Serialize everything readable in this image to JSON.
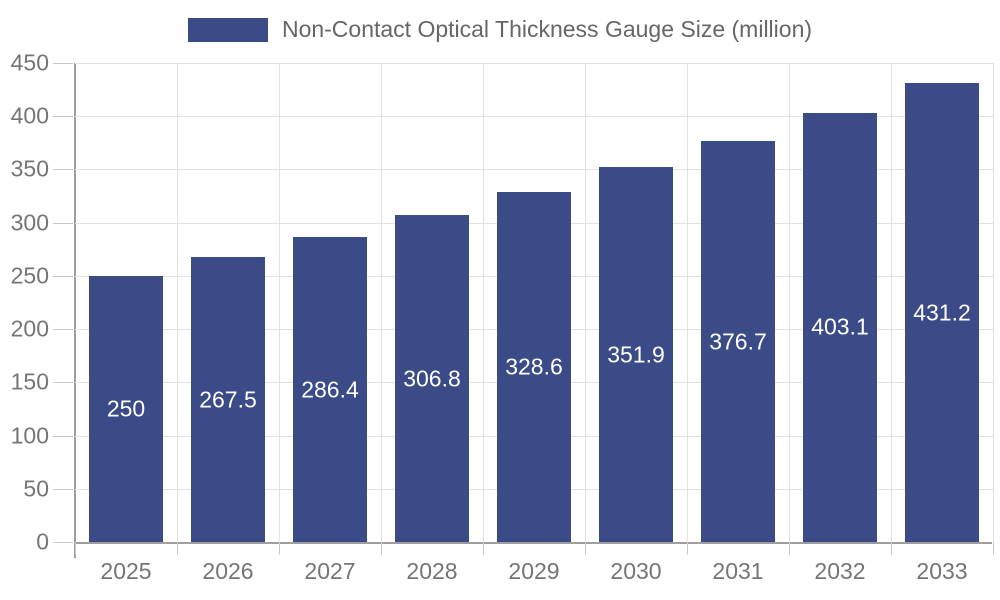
{
  "legend": {
    "label": "Non-Contact Optical Thickness Gauge Size (million)"
  },
  "chart_data": {
    "type": "bar",
    "title": "Non-Contact Optical Thickness Gauge Size (million)",
    "categories": [
      "2025",
      "2026",
      "2027",
      "2028",
      "2029",
      "2030",
      "2031",
      "2032",
      "2033"
    ],
    "values": [
      250,
      267.5,
      286.4,
      306.8,
      328.6,
      351.9,
      376.7,
      403.1,
      431.2
    ],
    "value_labels": [
      "250",
      "267.5",
      "286.4",
      "306.8",
      "328.6",
      "351.9",
      "376.7",
      "403.1",
      "431.2"
    ],
    "xlabel": "",
    "ylabel": "",
    "ylim": [
      0,
      450
    ],
    "yticks": [
      0,
      50,
      100,
      150,
      200,
      250,
      300,
      350,
      400,
      450
    ],
    "grid": true,
    "legend_position": "top-center",
    "colors": {
      "bar_fill": "#3a4b87",
      "bar_value_label": "#ffffff",
      "axis_line": "#9e9e9e",
      "gridline": "#e2e2e2",
      "tick_mark": "#c9c9c9",
      "tick_label": "#757575",
      "legend_text": "#666666",
      "background": "#ffffff"
    }
  }
}
